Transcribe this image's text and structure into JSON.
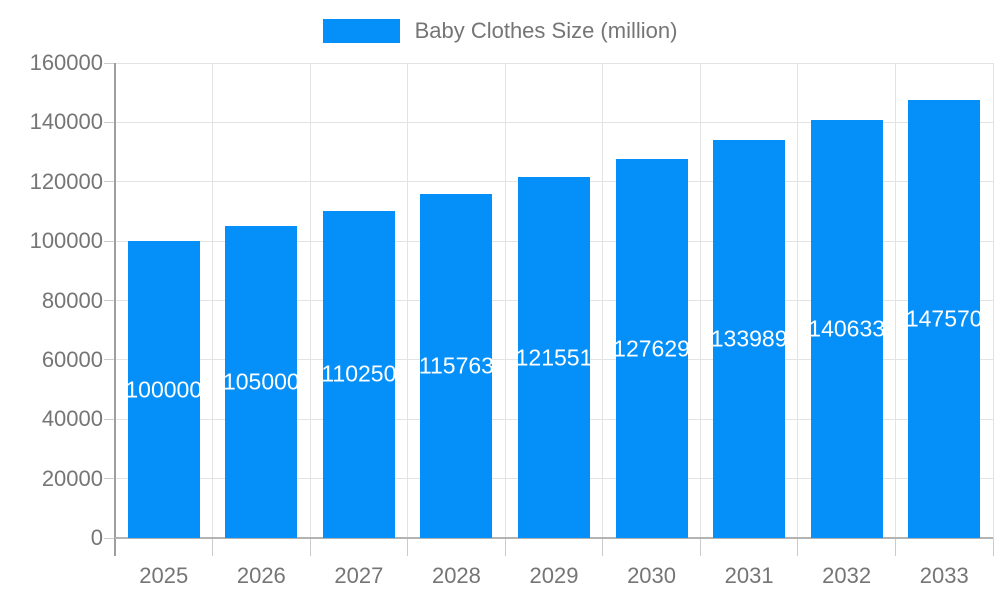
{
  "legend": {
    "label": "Baby Clothes Size (million)"
  },
  "colors": {
    "bar": "#0590F9",
    "grid": "#E3E3E3",
    "tick": "#CCCCCC",
    "axis_y_line": "#9E9E9E",
    "axis_x_line": "#B3B3B3",
    "axis_text": "#757575",
    "bar_label_text": "#FFFFFF",
    "background": "#FFFFFF"
  },
  "chart_data": {
    "type": "bar",
    "title": "Baby Clothes Size (million)",
    "categories": [
      "2025",
      "2026",
      "2027",
      "2028",
      "2029",
      "2030",
      "2031",
      "2032",
      "2033"
    ],
    "values": [
      100000,
      105000,
      110250,
      115763,
      121551,
      127629,
      133989,
      140633,
      147570
    ],
    "bar_labels": [
      "100000",
      "105000",
      "110250",
      "115763",
      "121551",
      "127629",
      "133989",
      "140633",
      "147570"
    ],
    "xlabel": "",
    "ylabel": "",
    "ylim": [
      0,
      160000
    ],
    "yticks": [
      0,
      20000,
      40000,
      60000,
      80000,
      100000,
      120000,
      140000,
      160000
    ],
    "ytick_labels": [
      "0",
      "20000",
      "40000",
      "60000",
      "80000",
      "100000",
      "120000",
      "140000",
      "160000"
    ],
    "grid": true,
    "legend_position": "top-center",
    "bar_label_position": "inside-center"
  }
}
